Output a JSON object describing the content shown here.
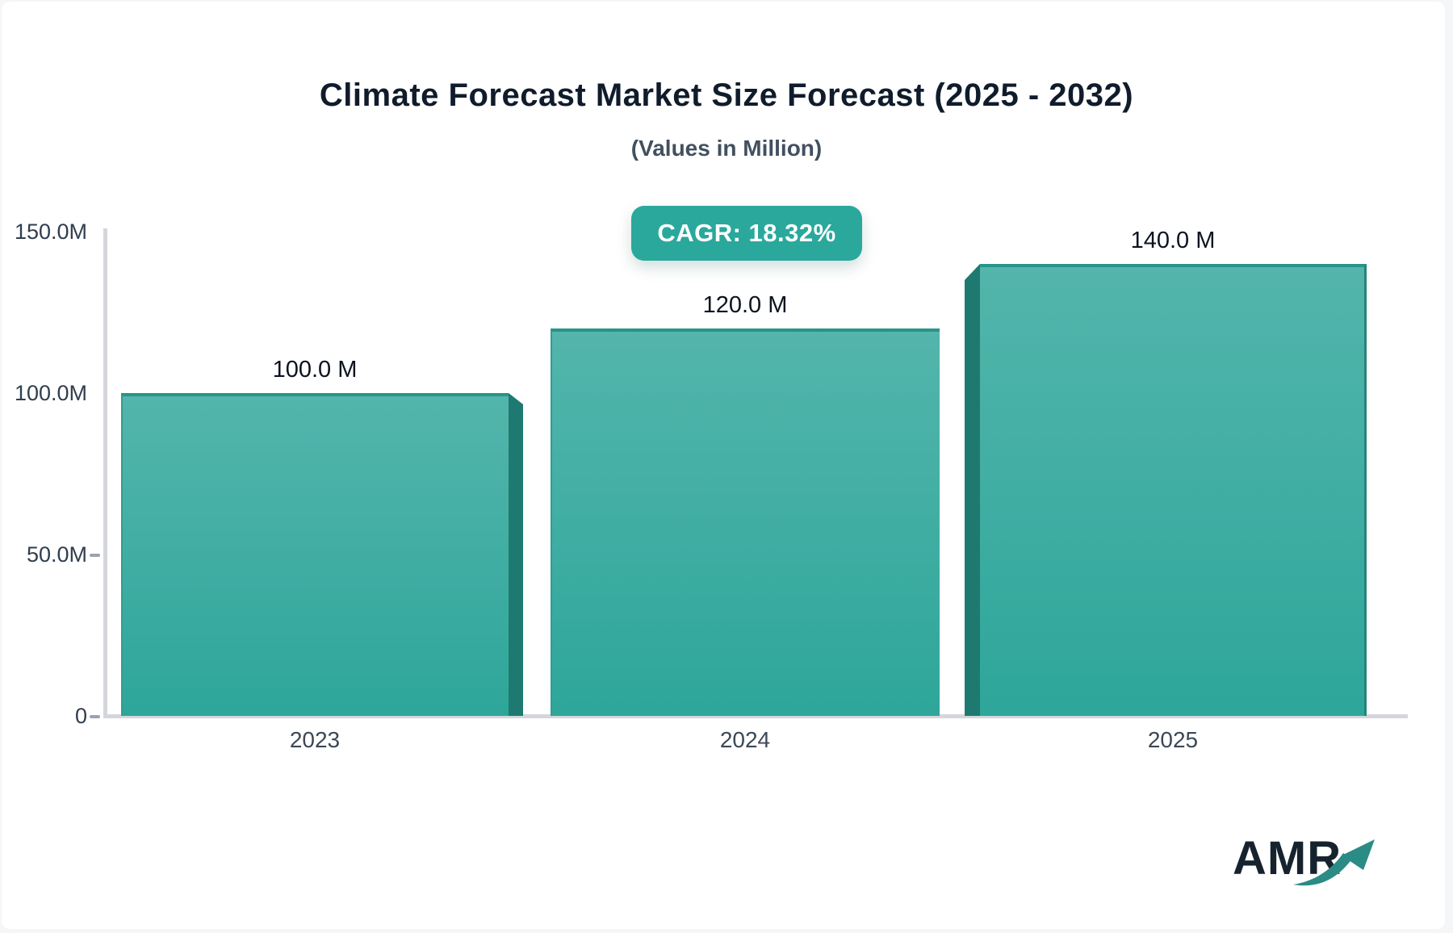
{
  "page": {
    "background_color": "#f4f6f8",
    "card_color": "#ffffff"
  },
  "chart": {
    "title": "Climate Forecast Market Size Forecast (2025 - 2032)",
    "subtitle": "(Values in Million)",
    "cagr_badge": "CAGR: 18.32%",
    "accent_color": "#2aa89c"
  },
  "chart_data": {
    "type": "bar",
    "title": "Climate Forecast Market Size Forecast (2025 - 2032)",
    "subtitle": "(Values in Million)",
    "unit": "Million",
    "categories": [
      "2023",
      "2024",
      "2025"
    ],
    "values": [
      100.0,
      120.0,
      140.0
    ],
    "value_labels": [
      "100.0 M",
      "120.0 M",
      "140.0 M"
    ],
    "annotation": "CAGR: 18.32%",
    "ylim": [
      0,
      150
    ],
    "yticks": [
      150,
      100,
      50,
      0
    ],
    "ytick_labels": [
      "150.0M",
      "100.0M",
      "50.0M",
      "0"
    ],
    "xlabel": "",
    "ylabel": "",
    "grid": false,
    "legend": false,
    "bar_gradient_top": "#53b5ac",
    "bar_gradient_bottom": "#2ea69a",
    "bar_side_shadow": "#1e7a70",
    "axis_line_color": "#d4d6dc"
  },
  "branding": {
    "logo_text": "AMR"
  }
}
